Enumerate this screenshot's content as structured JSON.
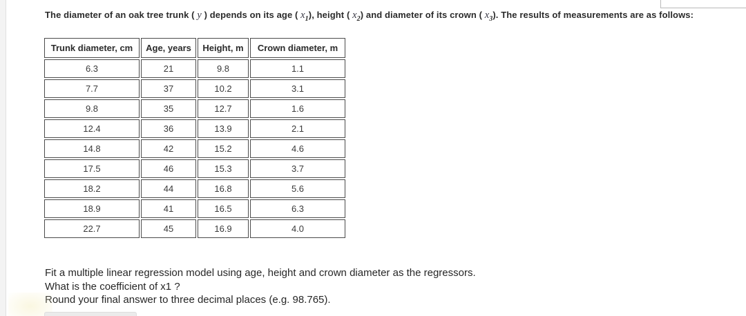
{
  "intro": {
    "part1": "The diameter of an oak tree trunk ( ",
    "var_y": "y",
    "part2": " ) depends on its age ( ",
    "var_x": "x",
    "sub1": "1",
    "part3": "), height ( ",
    "sub2": "2",
    "part4": ") and diameter of its crown ( ",
    "sub3": "3",
    "part5": "). The results of measurements are as follows:"
  },
  "table": {
    "headers": [
      "Trunk diameter, cm",
      "Age, years",
      "Height, m",
      "Crown diameter, m"
    ],
    "rows": [
      [
        "6.3",
        "21",
        "9.8",
        "1.1"
      ],
      [
        "7.7",
        "37",
        "10.2",
        "3.1"
      ],
      [
        "9.8",
        "35",
        "12.7",
        "1.6"
      ],
      [
        "12.4",
        "36",
        "13.9",
        "2.1"
      ],
      [
        "14.8",
        "42",
        "15.2",
        "4.6"
      ],
      [
        "17.5",
        "46",
        "15.3",
        "3.7"
      ],
      [
        "18.2",
        "44",
        "16.8",
        "5.6"
      ],
      [
        "18.9",
        "41",
        "16.5",
        "6.3"
      ],
      [
        "22.7",
        "45",
        "16.9",
        "4.0"
      ]
    ]
  },
  "question": {
    "line1": "Fit a multiple linear regression model using age, height and crown diameter as the regressors.",
    "line2": "What is the coefficient of x1 ?",
    "line3": "Round your final answer to three decimal places (e.g. 98.765)."
  },
  "colors": {
    "text": "#2b2b2b",
    "table_border": "#4a4a4a",
    "gutter": "#f3f3f3"
  }
}
